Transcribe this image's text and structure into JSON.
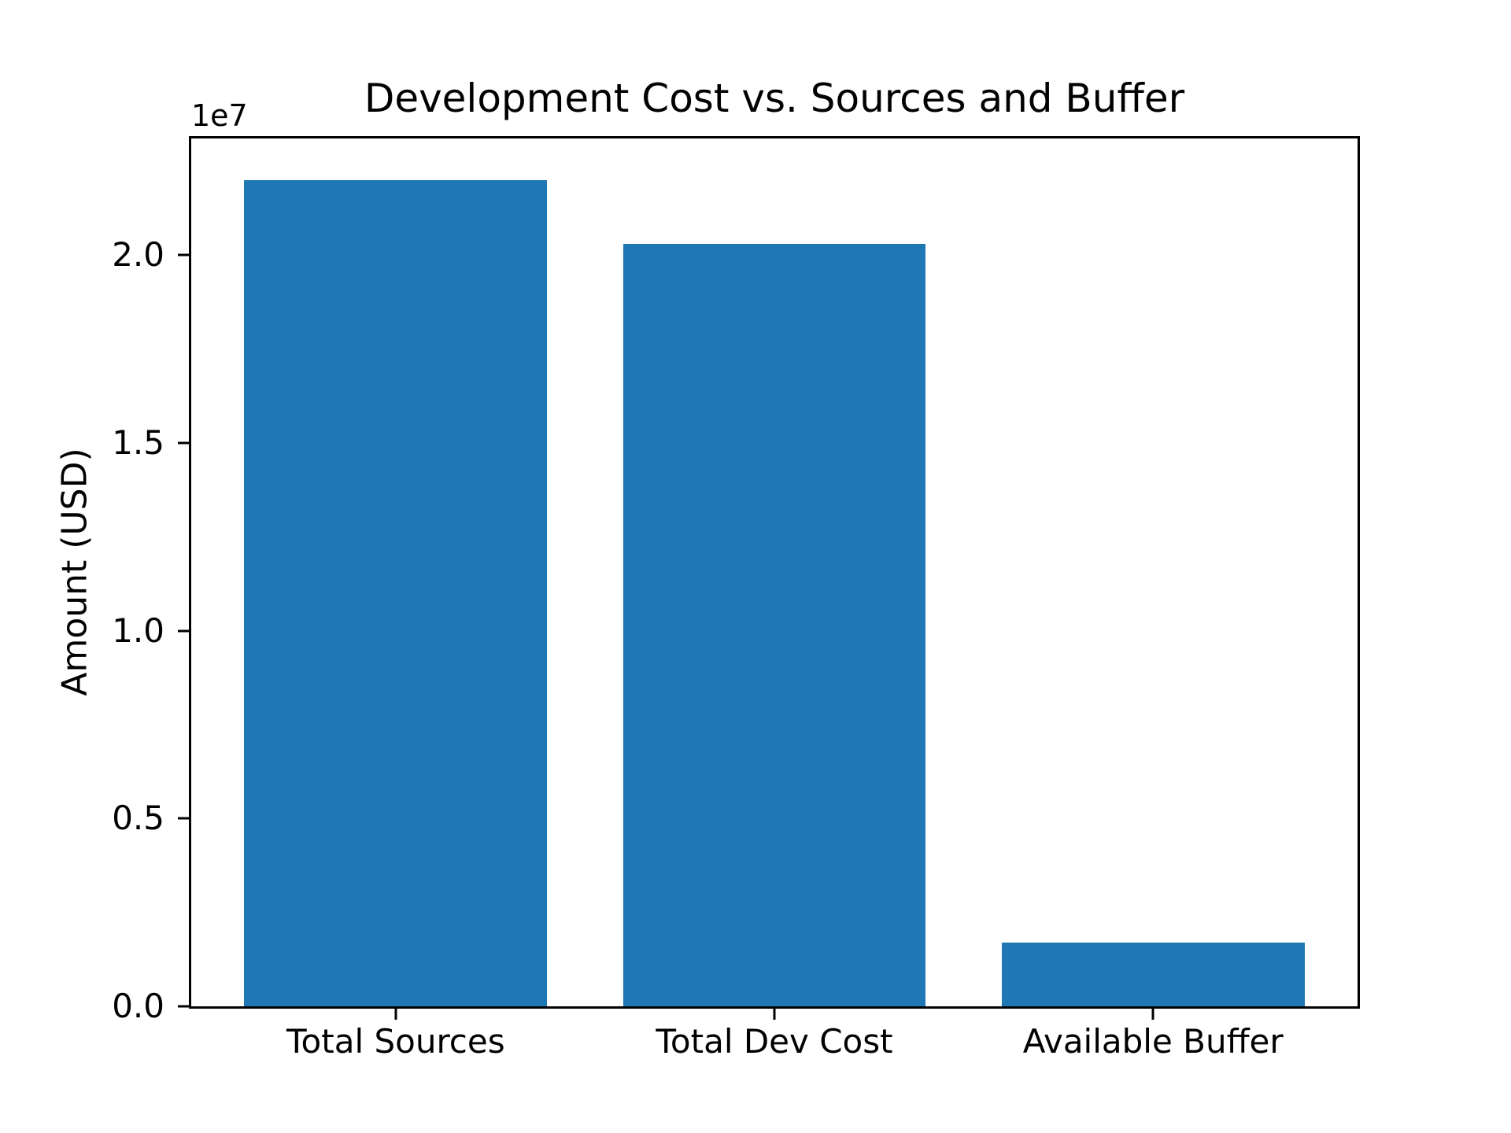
{
  "chart_data": {
    "type": "bar",
    "title": "Development Cost vs. Sources and Buffer",
    "xlabel": "",
    "ylabel": "Amount (USD)",
    "y_offset_text": "1e7",
    "categories": [
      "Total Sources",
      "Total Dev Cost",
      "Available Buffer"
    ],
    "values": [
      22000000,
      20300000,
      1700000
    ],
    "bar_color": "#1f77b4",
    "bar_width": 0.8,
    "xlim": [
      -0.54,
      2.54
    ],
    "ylim": [
      0,
      23100000
    ],
    "yticks": [
      {
        "value": 0,
        "label": "0.0"
      },
      {
        "value": 5000000,
        "label": "0.5"
      },
      {
        "value": 10000000,
        "label": "1.0"
      },
      {
        "value": 15000000,
        "label": "1.5"
      },
      {
        "value": 20000000,
        "label": "2.0"
      }
    ],
    "grid": false,
    "legend": null,
    "axis_color": "#000000",
    "background_color": "#ffffff"
  }
}
